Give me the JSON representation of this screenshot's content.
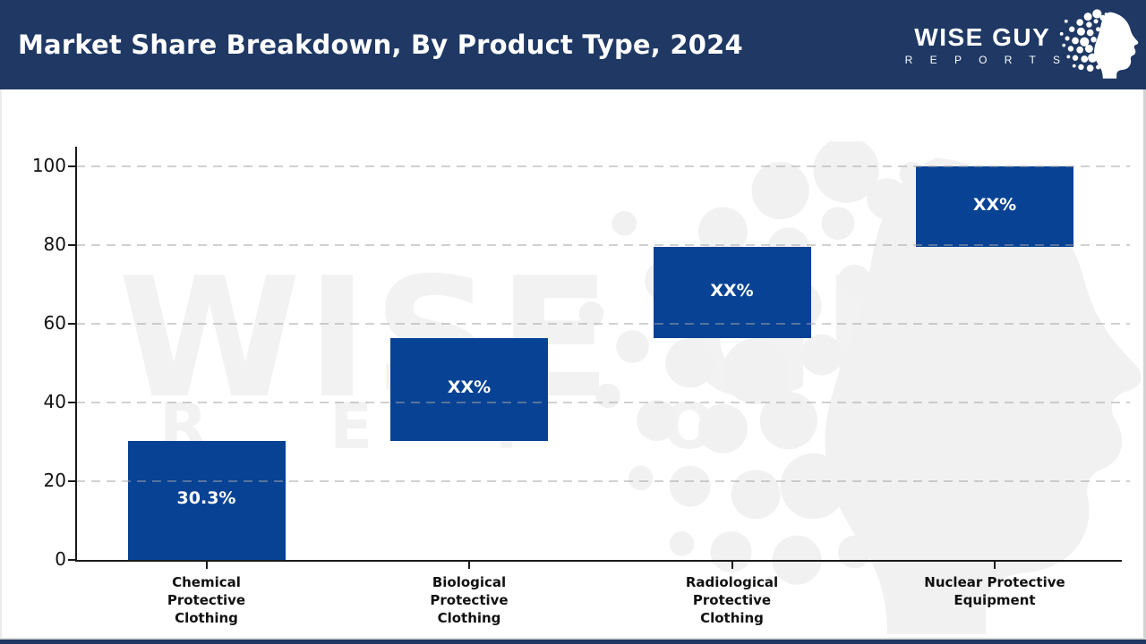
{
  "header": {
    "title": "Market Share Breakdown, By Product Type, 2024",
    "bg_color": "#1f3864",
    "logo": {
      "line1": "WISE GUY",
      "line2": "R E P O R T S",
      "head_icon": "dotted-face-profile-icon",
      "color": "#ffffff"
    }
  },
  "watermark": {
    "line1": "WISE GUY",
    "line2": "R E P O R T S",
    "head_icon": "dotted-face-profile-icon",
    "color": "#f2f2f2"
  },
  "chart_data": {
    "type": "bar",
    "variant": "waterfall",
    "title": "Market Share Breakdown, By Product Type, 2024",
    "xlabel": "",
    "ylabel": "",
    "ylim": [
      0,
      105
    ],
    "yticks": [
      0,
      20,
      40,
      60,
      80,
      100
    ],
    "grid": "horizontal dashed, drawn over bars",
    "legend": "none",
    "bar_color": "#084294",
    "value_label_color": "#ffffff",
    "axis_color": "#1a1a1a",
    "grid_color": "#dcdcdc",
    "categories": [
      "Chemical\nProtective\nClothing",
      "Biological\nProtective\nClothing",
      "Radiological\nProtective\nClothing",
      "Nuclear Protective\nEquipment"
    ],
    "segments": [
      {
        "category": "Chemical Protective Clothing",
        "start": 0,
        "end": 30.3,
        "value_label": "30.3%"
      },
      {
        "category": "Biological Protective Clothing",
        "start": 30.3,
        "end": 56.3,
        "value_label": "XX%"
      },
      {
        "category": "Radiological Protective Clothing",
        "start": 56.3,
        "end": 79.5,
        "value_label": "XX%"
      },
      {
        "category": "Nuclear Protective Equipment",
        "start": 79.5,
        "end": 100,
        "value_label": "XX%"
      }
    ]
  },
  "footer": {
    "bar_color": "#1f3864"
  }
}
